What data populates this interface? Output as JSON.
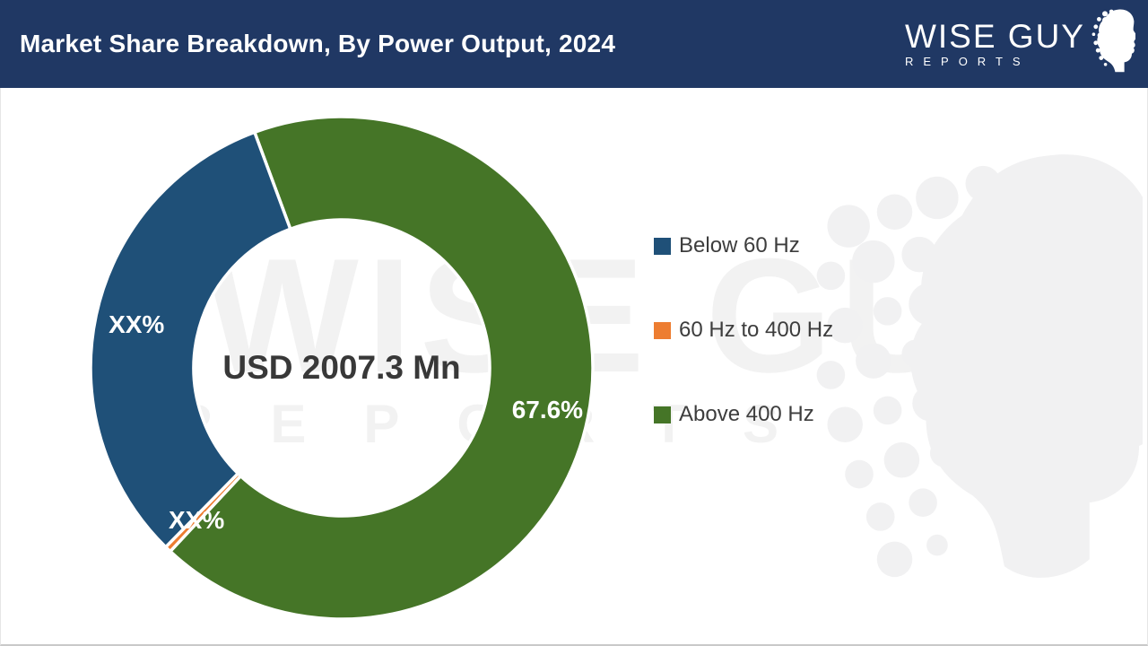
{
  "header": {
    "title": "Market Share Breakdown, By Power Output, 2024",
    "logo": {
      "wordmark": "WISE GUY",
      "subtitle": "REPORTS"
    }
  },
  "watermark": {
    "wordmark": "WISE GUY",
    "subtitle": "REPORTS"
  },
  "chart_data": {
    "type": "pie",
    "subtype": "donut",
    "title": "Market Share Breakdown, By Power Output, 2024",
    "center_label": "USD 2007.3 Mn",
    "unit": "%",
    "rotation_deg": 339.7,
    "legend_position": "right",
    "segments": [
      {
        "name": "Above 400 Hz",
        "value": 67.6,
        "display_label": "67.6%",
        "color": "#457527"
      },
      {
        "name": "60 Hz to 400 Hz",
        "value": 0.4,
        "display_label": "XX%",
        "color": "#ed7d31"
      },
      {
        "name": "Below 60 Hz",
        "value": 32.0,
        "display_label": "XX%",
        "color": "#1f5078"
      }
    ],
    "colors": {
      "header_navy": "#203864",
      "segment_label_text": "#ffffff",
      "center_text": "#383838",
      "watermark": "#f2f2f2"
    }
  },
  "legend": {
    "items": [
      {
        "label": "Below 60 Hz",
        "color": "#1f5078"
      },
      {
        "label": "60 Hz to 400 Hz",
        "color": "#ed7d31"
      },
      {
        "label": "Above 400 Hz",
        "color": "#457527"
      }
    ]
  }
}
